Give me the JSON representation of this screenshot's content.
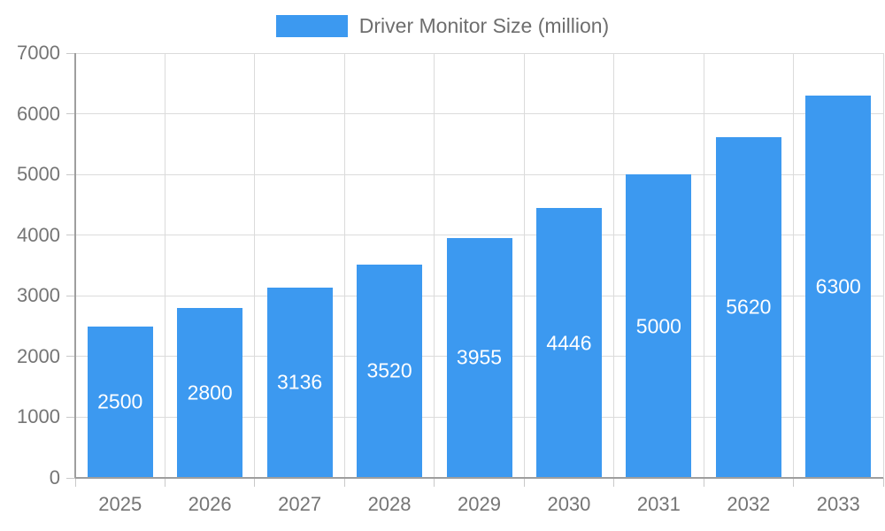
{
  "chart_data": {
    "type": "bar",
    "title": "Driver Monitor Size (million)",
    "series_name": "Driver Monitor Size (million)",
    "categories": [
      "2025",
      "2026",
      "2027",
      "2028",
      "2029",
      "2030",
      "2031",
      "2032",
      "2033"
    ],
    "values": [
      2500,
      2800,
      3136,
      3520,
      3955,
      4446,
      5000,
      5620,
      6300
    ],
    "value_labels": [
      "2500",
      "2800",
      "3136",
      "3520",
      "3955",
      "4446",
      "5000",
      "5620",
      "6300"
    ],
    "xlabel": "",
    "ylabel": "",
    "ylim": [
      0,
      7000
    ],
    "y_ticks": [
      0,
      1000,
      2000,
      3000,
      4000,
      5000,
      6000,
      7000
    ],
    "grid": true,
    "legend_position": "top-center",
    "colors": {
      "bar": "#3C99F0",
      "bar_label_text": "#FFFFFF",
      "axis_text": "#757575",
      "legend_text": "#6E6E6E",
      "gridline": "#DBDBDB",
      "tick": "#C9C9C9",
      "axis_line": "#9E9E9E",
      "background": "#FFFFFF"
    }
  }
}
